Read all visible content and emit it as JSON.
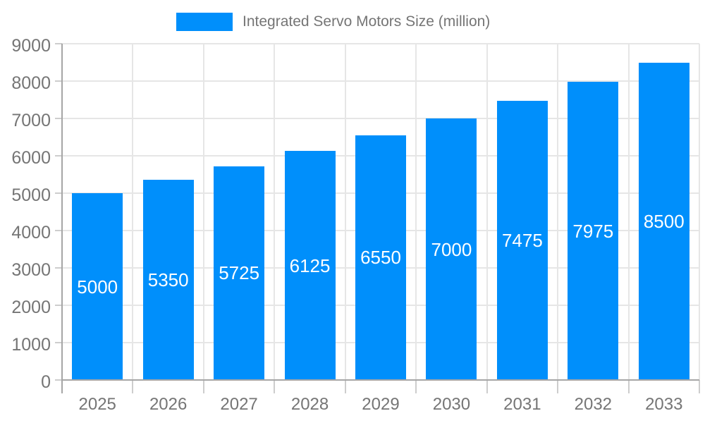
{
  "legend": {
    "label": "Integrated Servo Motors Size (million)"
  },
  "colors": {
    "bar": "#008FFB",
    "grid": "#e6e6e6",
    "axis": "#a6a6a6",
    "tick": "#cdcdcd",
    "axis_label": "#757575",
    "bar_label": "#ffffff",
    "background": "#ffffff"
  },
  "chart_data": {
    "type": "bar",
    "title": "Integrated Servo Motors Size (million)",
    "categories": [
      "2025",
      "2026",
      "2027",
      "2028",
      "2029",
      "2030",
      "2031",
      "2032",
      "2033"
    ],
    "series": [
      {
        "name": "Integrated Servo Motors Size (million)",
        "values": [
          5000,
          5350,
          5725,
          6125,
          6550,
          7000,
          7475,
          7975,
          8500
        ]
      }
    ],
    "data_labels": [
      5000,
      5350,
      5725,
      6125,
      6550,
      7000,
      7475,
      7975,
      8500
    ],
    "xlabel": "",
    "ylabel": "",
    "ylim": [
      0,
      9000
    ],
    "yticks": [
      0,
      1000,
      2000,
      3000,
      4000,
      5000,
      6000,
      7000,
      8000,
      9000
    ],
    "grid": true,
    "legend_position": "top-center",
    "data_label_position": "inside-center"
  }
}
